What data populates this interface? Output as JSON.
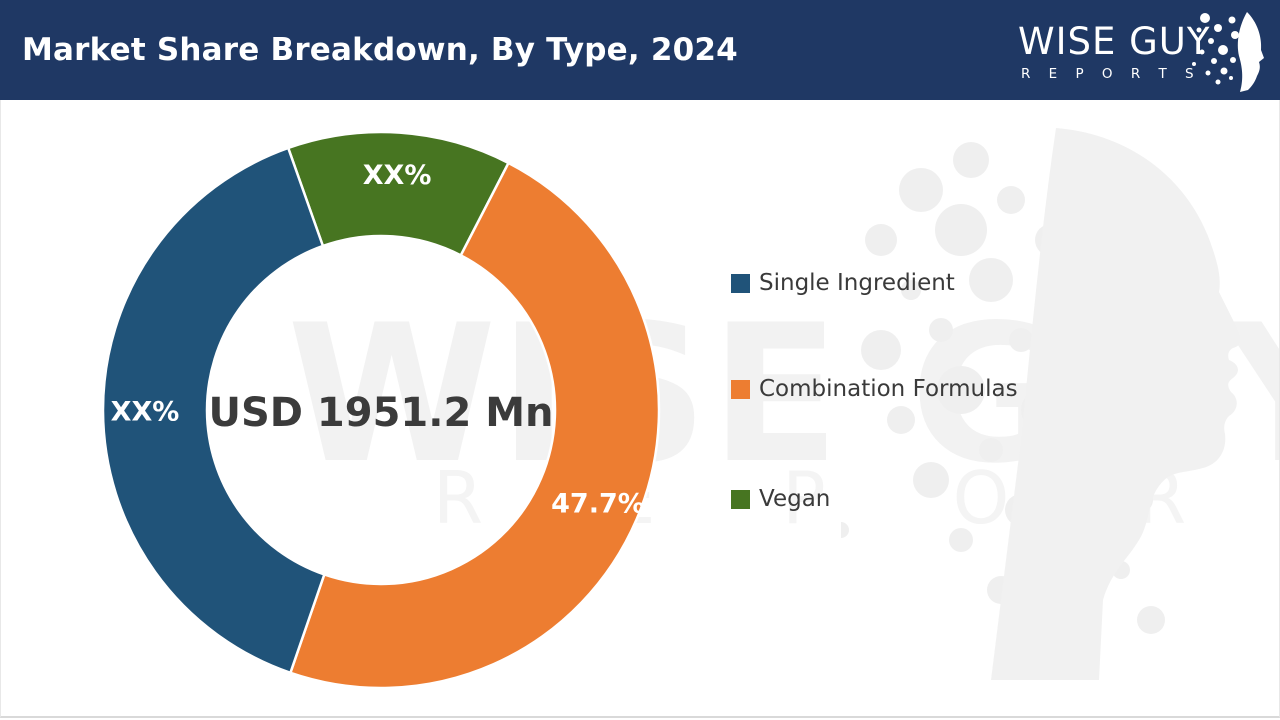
{
  "header": {
    "title": "Market Share Breakdown, By Type, 2024",
    "bg_color": "#1F3864",
    "logo": {
      "line1": "WISE GUY",
      "line2": "R E P O R T S"
    }
  },
  "watermark": {
    "line1": "WISE GUY",
    "line2": "R E P O R T S"
  },
  "chart_data": {
    "type": "pie",
    "donut": true,
    "title": "Market Share Breakdown, By Type, 2024",
    "center_label": "USD 1951.2 Mn",
    "legend_position": "right",
    "start_angle_deg": -19.5,
    "draw_sequence": [
      2,
      1,
      0
    ],
    "segments": [
      {
        "name": "Single Ingredient",
        "value_pct": 39.3,
        "slice_label": "XX%",
        "color": "#205379"
      },
      {
        "name": "Combination Formulas",
        "value_pct": 47.7,
        "slice_label": "47.7%",
        "color": "#ED7D31"
      },
      {
        "name": "Vegan",
        "value_pct": 13.0,
        "slice_label": "XX%",
        "color": "#477521"
      }
    ],
    "colors": {
      "header_navy": "#1F3864",
      "center_text": "#3b3b3b",
      "slice_label_text": "#ffffff"
    }
  }
}
